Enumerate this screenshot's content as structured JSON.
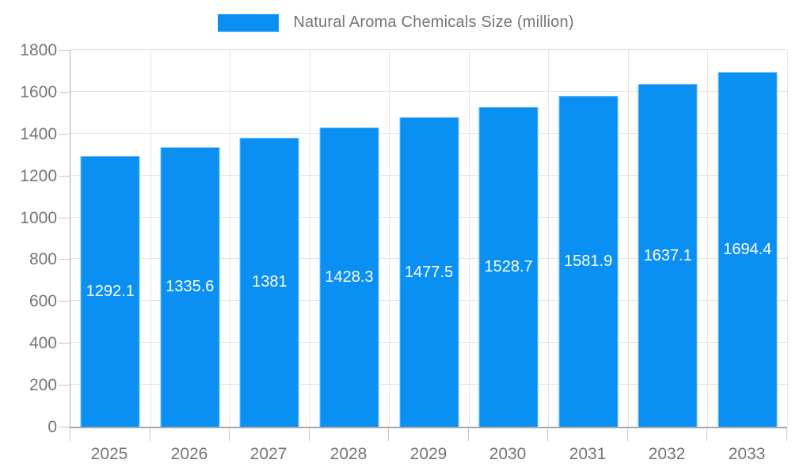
{
  "chart_data": {
    "type": "bar",
    "title": "Natural Aroma Chemicals Size (million)",
    "categories": [
      "2025",
      "2026",
      "2027",
      "2028",
      "2029",
      "2030",
      "2031",
      "2032",
      "2033"
    ],
    "values": [
      1292.1,
      1335.6,
      1381,
      1428.3,
      1477.5,
      1528.7,
      1581.9,
      1637.1,
      1694.4
    ],
    "bar_labels": [
      "1292.1",
      "1335.6",
      "1381",
      "1428.3",
      "1477.5",
      "1528.7",
      "1581.9",
      "1637.1",
      "1694.4"
    ],
    "xlabel": "",
    "ylabel": "",
    "ylim": [
      0,
      1800
    ],
    "yticks": [
      0,
      200,
      400,
      600,
      800,
      1000,
      1200,
      1400,
      1600,
      1800
    ],
    "grid": true,
    "legend_position": "top-center",
    "value_label_position": "center-of-bar",
    "colors": {
      "bar": "#0a8ff2",
      "bar_label": "#ffffff",
      "axis_text": "#757575",
      "grid_line": "#e4e4e4",
      "axis_line": "#a8a8a8",
      "tick": "#c6c6c6",
      "background": "#ffffff"
    }
  }
}
